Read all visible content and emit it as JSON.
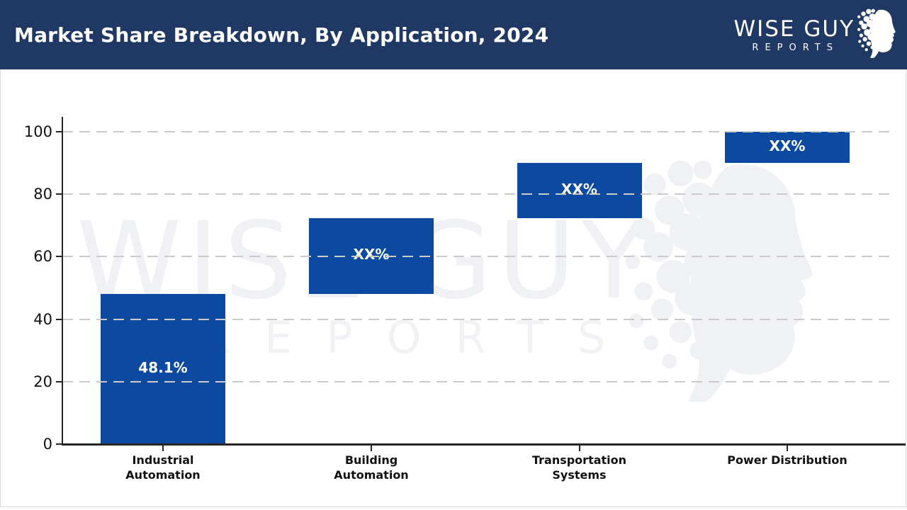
{
  "header": {
    "title": "Market Share Breakdown, By Application, 2024",
    "bg_color": "#1f3864",
    "logo": {
      "wordmark": "WISE GUY",
      "subtitle": "REPORTS"
    }
  },
  "watermark": {
    "wordmark": "WISE GUY",
    "subtitle": "REPORTS"
  },
  "chart_data": {
    "type": "bar",
    "subtype": "waterfall",
    "title": "Market Share Breakdown, By Application, 2024",
    "categories": [
      "Industrial Automation",
      "Building Automation",
      "Transportation Systems",
      "Power Distribution"
    ],
    "x_tick_labels": [
      "Industrial\nAutomation",
      "Building\nAutomation",
      "Transportation\nSystems",
      "Power Distribution"
    ],
    "segments": [
      {
        "category": "Industrial Automation",
        "start": 0,
        "end": 48.1,
        "label": "48.1%"
      },
      {
        "category": "Building Automation",
        "start": 48.1,
        "end": 72.4,
        "label": "XX%"
      },
      {
        "category": "Transportation Systems",
        "start": 72.4,
        "end": 90,
        "label": "XX%"
      },
      {
        "category": "Power Distribution",
        "start": 90,
        "end": 100,
        "label": "XX%"
      }
    ],
    "ylim": [
      0,
      100
    ],
    "yticks": [
      0,
      20,
      40,
      60,
      80,
      100
    ],
    "grid": "horizontal-dashed",
    "legend": "none",
    "bar_color": "#0b4aa0",
    "bar_label_color": "#ffffff",
    "axis_color": "#262626",
    "grid_color": "#cbcbcb"
  }
}
